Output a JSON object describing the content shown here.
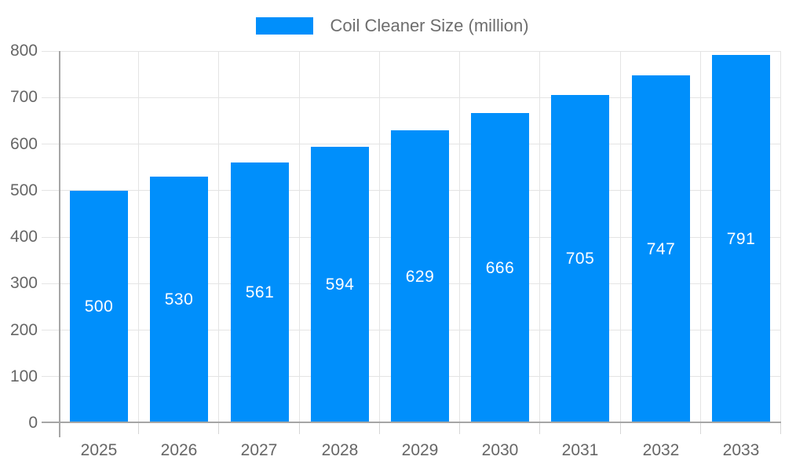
{
  "chart_data": {
    "type": "bar",
    "title": "",
    "categories": [
      "2025",
      "2026",
      "2027",
      "2028",
      "2029",
      "2030",
      "2031",
      "2032",
      "2033"
    ],
    "series": [
      {
        "name": "Coil Cleaner Size (million)",
        "color": "#008FFB",
        "values": [
          500,
          530,
          561,
          594,
          629,
          666,
          705,
          747,
          791
        ]
      }
    ],
    "ylim": [
      0,
      800
    ],
    "yticks": [
      0,
      100,
      200,
      300,
      400,
      500,
      600,
      700,
      800
    ],
    "grid": true,
    "legend_position": "top",
    "value_label_position": "inside-center"
  },
  "legend": {
    "label": "Coil Cleaner Size (million)"
  },
  "colors": {
    "bar": "#008FFB",
    "axis_line": "#a6a6a6",
    "grid_line": "#e4e4e4",
    "tick_line": "#d6d6d6",
    "axis_text": "#666666",
    "legend_text": "#6e6e6e",
    "value_label_text": "#ffffff",
    "background": "#ffffff"
  }
}
